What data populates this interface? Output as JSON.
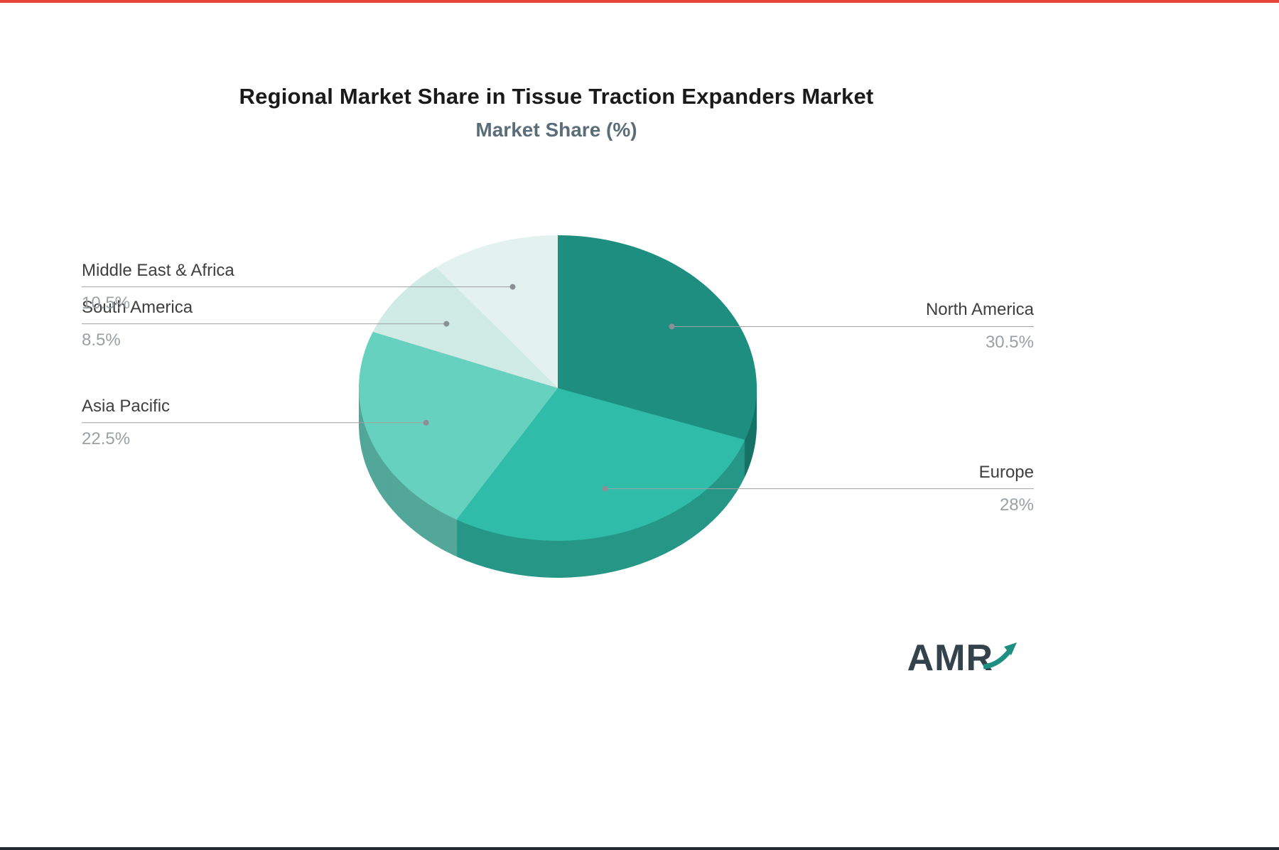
{
  "page": {
    "top_strip_color": "#e8463c",
    "bottom_strip_color": "#232b31"
  },
  "chart_data": {
    "type": "pie",
    "title": "Regional Market Share in Tissue Traction Expanders Market",
    "subtitle": "Market Share (%)",
    "categories": [
      "North America",
      "Europe",
      "Asia Pacific",
      "South America",
      "Middle East & Africa"
    ],
    "values": [
      30.5,
      28,
      22.5,
      8.5,
      10.5
    ],
    "value_labels": [
      "30.5%",
      "28%",
      "22.5%",
      "8.5%",
      "10.5%"
    ],
    "colors": [
      "#1d8e80",
      "#2fbda9",
      "#67d1bf",
      "#d0eae5",
      "#e4f2ef"
    ],
    "start_angle_deg": -90,
    "direction": "clockwise",
    "depth_3d": true,
    "legend": "none",
    "label_name_color": "#3f3f3f",
    "label_value_color": "#9aa0a4",
    "leader_line_color": "#a0a0a0"
  },
  "logo": {
    "text": "AMR",
    "color": "#33424b",
    "arrow_color": "#1d8e80"
  }
}
